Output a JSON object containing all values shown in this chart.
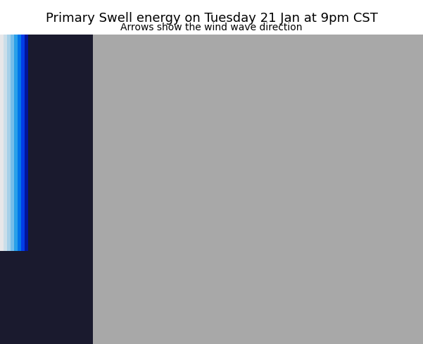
{
  "title": "Primary Swell energy on Tuesday 21 Jan at 9pm CST",
  "subtitle": "Arrows show the wind wave direction",
  "title_fontsize": 13,
  "subtitle_fontsize": 10,
  "bg_color": "#ffffff",
  "map_bg": "#aaaaaa",
  "ocean_color": "#6e9ec0",
  "fig_width": 6.01,
  "fig_height": 4.88,
  "dpi": 100
}
